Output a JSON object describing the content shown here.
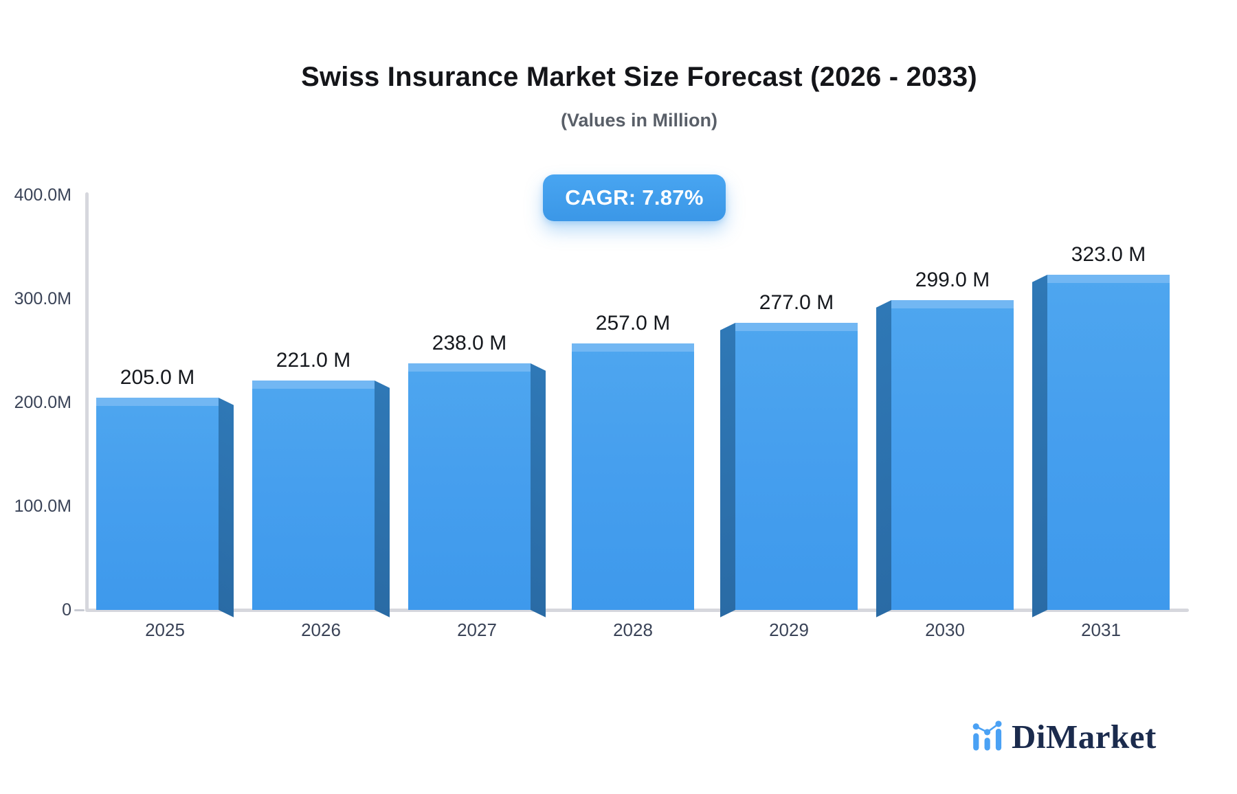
{
  "header": {
    "title": "Swiss Insurance Market Size Forecast (2026 - 2033)",
    "subtitle": "(Values in Million)",
    "cagr_label": "CAGR: 7.87%"
  },
  "chart_data": {
    "type": "bar",
    "categories": [
      "2025",
      "2026",
      "2027",
      "2028",
      "2029",
      "2030",
      "2031"
    ],
    "values": [
      205,
      221,
      238,
      257,
      277,
      299,
      323
    ],
    "value_labels": [
      "205.0 M",
      "221.0 M",
      "238.0 M",
      "257.0 M",
      "277.0 M",
      "299.0 M",
      "323.0 M"
    ],
    "title": "Swiss Insurance Market Size Forecast (2026 - 2033)",
    "xlabel": "",
    "ylabel": "",
    "ylim": [
      0,
      400
    ],
    "yticks": [
      {
        "label": "400.0M",
        "value": 400
      },
      {
        "label": "300.0M",
        "value": 300
      },
      {
        "label": "200.0M",
        "value": 200
      },
      {
        "label": "100.0M",
        "value": 100
      },
      {
        "label": "0",
        "value": 0
      }
    ],
    "grid": false,
    "legend": "none",
    "effect": "3d-perspective-bars"
  },
  "colors": {
    "bar_main": "#469fee",
    "bar_highlight": "#72b7f3",
    "bar_side": "#2d74b2",
    "badge_bg": "#3f9cea",
    "axis_line": "#d6d7dd",
    "tick_text": "#3a4357",
    "value_text": "#15181d",
    "logo_blue": "#4aa1f4",
    "logo_navy": "#1b2b4d"
  },
  "footer": {
    "brand": "DiMarket"
  }
}
